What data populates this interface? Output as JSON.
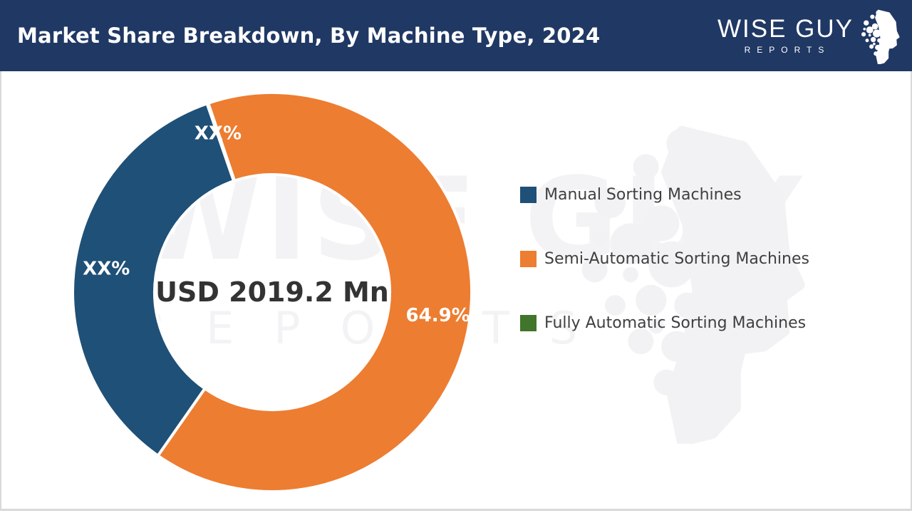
{
  "header": {
    "title": "Market Share Breakdown, By Machine Type, 2024",
    "logo": {
      "line1": "WISE GUY",
      "line2": "REPORTS"
    }
  },
  "watermark": {
    "line1": "WISE GUY",
    "line2": "REPORTS"
  },
  "colors": {
    "header_background": "#203864",
    "blue": "#1F5077",
    "orange": "#ED7D31",
    "green": "#40752B",
    "border": "#d9d9d9"
  },
  "chart_data": {
    "type": "donut",
    "title": "Market Share Breakdown, By Machine Type, 2024",
    "center_label": "USD 2019.2 Mn",
    "unit": "%",
    "start_angle_deg": -18.7,
    "legend_position": "right",
    "slices": [
      {
        "name": "Semi-Automatic Sorting Machines",
        "value": 64.9,
        "display": "64.9%",
        "color": "#ED7D31"
      },
      {
        "name": "Manual Sorting Machines",
        "value": 35.0,
        "display": "XX%",
        "color": "#1F5077"
      },
      {
        "name": "Fully Automatic Sorting Machines",
        "value": 0.1,
        "display": "XX%",
        "color": "#40752B"
      }
    ]
  },
  "legend": {
    "items": [
      {
        "label": "Manual Sorting Machines",
        "color": "#1F5077"
      },
      {
        "label": "Semi-Automatic Sorting Machines",
        "color": "#ED7D31"
      },
      {
        "label": "Fully Automatic Sorting Machines",
        "color": "#40752B"
      }
    ]
  }
}
